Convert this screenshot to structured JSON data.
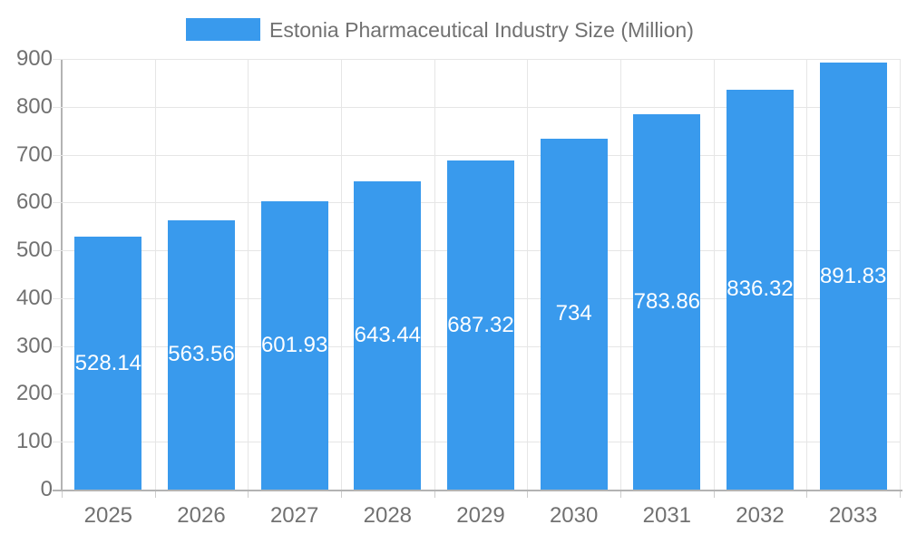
{
  "legend": {
    "label": "Estonia Pharmaceutical Industry Size (Million)"
  },
  "chart_data": {
    "type": "bar",
    "title": "Estonia Pharmaceutical Industry Size (Million)",
    "categories": [
      "2025",
      "2026",
      "2027",
      "2028",
      "2029",
      "2030",
      "2031",
      "2032",
      "2033"
    ],
    "values": [
      528.14,
      563.56,
      601.93,
      643.44,
      687.32,
      734,
      783.86,
      836.32,
      891.83
    ],
    "value_labels": [
      "528.14",
      "563.56",
      "601.93",
      "643.44",
      "687.32",
      "734",
      "783.86",
      "836.32",
      "891.83"
    ],
    "series_name": "Estonia Pharmaceutical Industry Size (Million)",
    "xlabel": "",
    "ylabel": "",
    "ylim": [
      0,
      900
    ],
    "yticks": [
      0,
      100,
      200,
      300,
      400,
      500,
      600,
      700,
      800,
      900
    ],
    "grid": "on",
    "legend_position": "top",
    "value_label_position": "inside-center"
  },
  "colors": {
    "bar": "#399AED",
    "gridline": "#E6E6E6",
    "axis_line": "#B3B3B3",
    "tick": "#CCCCCC",
    "axis_text": "#717171",
    "legend_text": "#717171",
    "value_text": "#FFFFFF",
    "background": "#FFFFFF"
  }
}
